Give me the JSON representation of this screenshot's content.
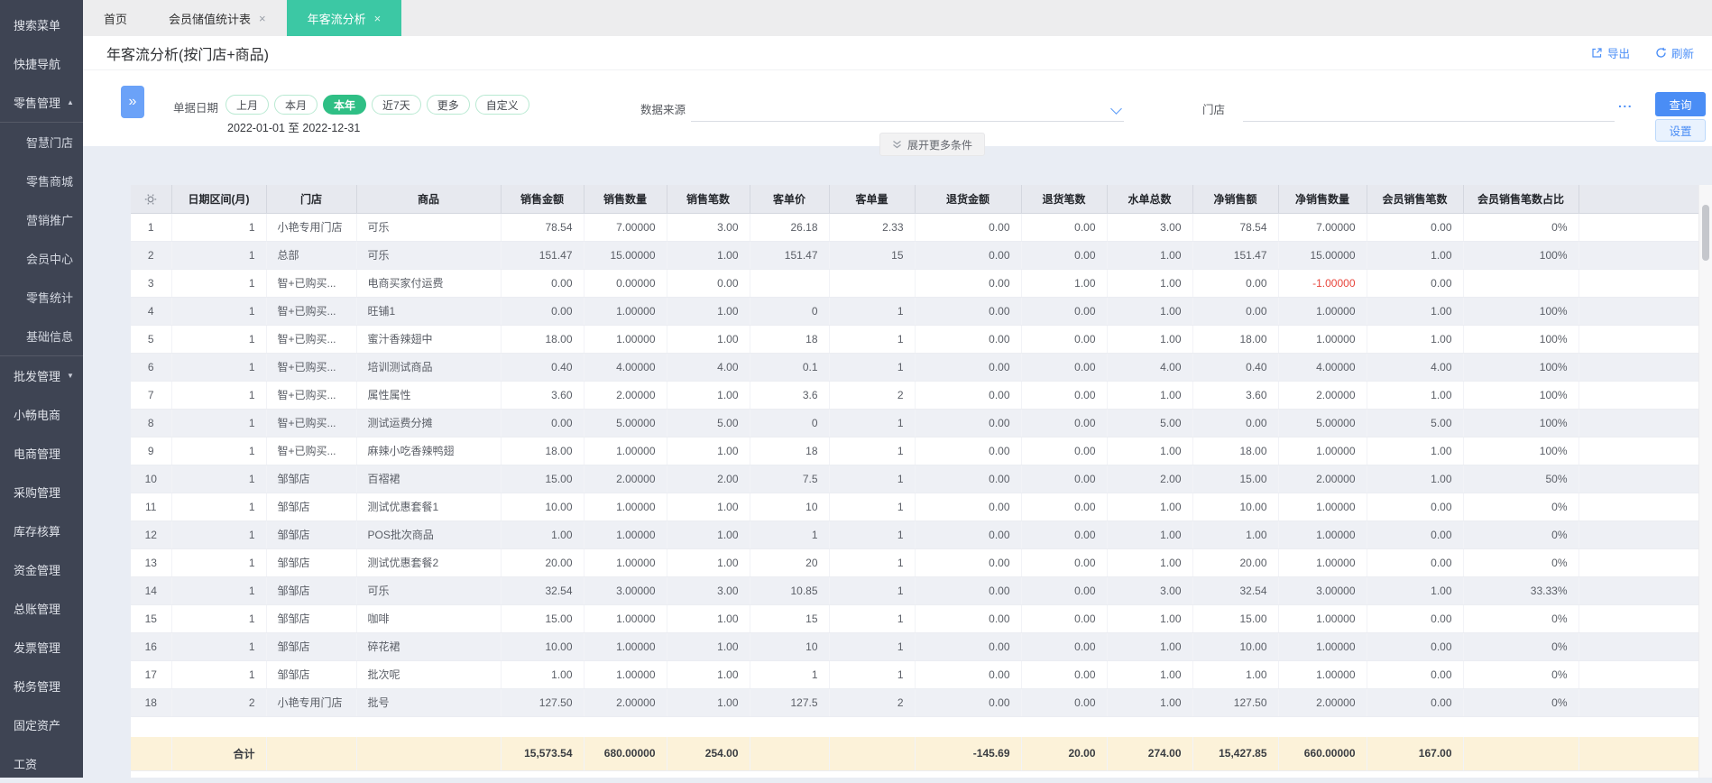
{
  "sidebar": {
    "items": [
      {
        "label": "搜索菜单",
        "type": "item"
      },
      {
        "label": "快捷导航",
        "type": "item"
      },
      {
        "label": "零售管理",
        "type": "group",
        "state": "expanded"
      },
      {
        "label": "智慧门店",
        "type": "sub"
      },
      {
        "label": "零售商城",
        "type": "sub"
      },
      {
        "label": "营销推广",
        "type": "sub"
      },
      {
        "label": "会员中心",
        "type": "sub"
      },
      {
        "label": "零售统计",
        "type": "sub"
      },
      {
        "label": "基础信息",
        "type": "sub"
      },
      {
        "label": "批发管理",
        "type": "group",
        "state": "collapsed"
      },
      {
        "label": "小畅电商",
        "type": "item"
      },
      {
        "label": "电商管理",
        "type": "item"
      },
      {
        "label": "采购管理",
        "type": "item"
      },
      {
        "label": "库存核算",
        "type": "item"
      },
      {
        "label": "资金管理",
        "type": "item"
      },
      {
        "label": "总账管理",
        "type": "item"
      },
      {
        "label": "发票管理",
        "type": "item"
      },
      {
        "label": "税务管理",
        "type": "item"
      },
      {
        "label": "固定资产",
        "type": "item"
      },
      {
        "label": "工资",
        "type": "item"
      }
    ]
  },
  "tabs": [
    {
      "label": "首页",
      "closable": false,
      "active": false
    },
    {
      "label": "会员储值统计表",
      "closable": true,
      "active": false
    },
    {
      "label": "年客流分析",
      "closable": true,
      "active": true
    }
  ],
  "header": {
    "title": "年客流分析(按门店+商品)",
    "export_label": "导出",
    "refresh_label": "刷新"
  },
  "filters": {
    "date_label": "单据日期",
    "date_options": [
      "上月",
      "本月",
      "本年",
      "近7天",
      "更多",
      "自定义"
    ],
    "active_date_option": "本年",
    "date_range": "2022-01-01 至 2022-12-31",
    "source_label": "数据来源",
    "source_value": "",
    "store_label": "门店",
    "store_value": "",
    "more_dots": "...",
    "query_label": "查询",
    "settings_label": "设置",
    "expand_label": "展开更多条件"
  },
  "table": {
    "columns": [
      "日期区间(月)",
      "门店",
      "商品",
      "销售金额",
      "销售数量",
      "销售笔数",
      "客单价",
      "客单量",
      "退货金额",
      "退货笔数",
      "水单总数",
      "净销售额",
      "净销售数量",
      "会员销售笔数",
      "会员销售笔数占比"
    ],
    "rows": [
      [
        "1",
        "1",
        "小艳专用门店",
        "可乐",
        "78.54",
        "7.00000",
        "3.00",
        "26.18",
        "2.33",
        "0.00",
        "0.00",
        "3.00",
        "78.54",
        "7.00000",
        "0.00",
        "0%"
      ],
      [
        "2",
        "1",
        "总部",
        "可乐",
        "151.47",
        "15.00000",
        "1.00",
        "151.47",
        "15",
        "0.00",
        "0.00",
        "1.00",
        "151.47",
        "15.00000",
        "1.00",
        "100%"
      ],
      [
        "3",
        "1",
        "智+已购买...",
        "电商买家付运费",
        "0.00",
        "0.00000",
        "0.00",
        "",
        "",
        "0.00",
        "1.00",
        "1.00",
        "0.00",
        "-1.00000",
        "0.00",
        ""
      ],
      [
        "4",
        "1",
        "智+已购买...",
        "旺铺1",
        "0.00",
        "1.00000",
        "1.00",
        "0",
        "1",
        "0.00",
        "0.00",
        "1.00",
        "0.00",
        "1.00000",
        "1.00",
        "100%"
      ],
      [
        "5",
        "1",
        "智+已购买...",
        "蜜汁香辣翅中",
        "18.00",
        "1.00000",
        "1.00",
        "18",
        "1",
        "0.00",
        "0.00",
        "1.00",
        "18.00",
        "1.00000",
        "1.00",
        "100%"
      ],
      [
        "6",
        "1",
        "智+已购买...",
        "培训测试商品",
        "0.40",
        "4.00000",
        "4.00",
        "0.1",
        "1",
        "0.00",
        "0.00",
        "4.00",
        "0.40",
        "4.00000",
        "4.00",
        "100%"
      ],
      [
        "7",
        "1",
        "智+已购买...",
        "属性属性",
        "3.60",
        "2.00000",
        "1.00",
        "3.6",
        "2",
        "0.00",
        "0.00",
        "1.00",
        "3.60",
        "2.00000",
        "1.00",
        "100%"
      ],
      [
        "8",
        "1",
        "智+已购买...",
        "测试运费分摊",
        "0.00",
        "5.00000",
        "5.00",
        "0",
        "1",
        "0.00",
        "0.00",
        "5.00",
        "0.00",
        "5.00000",
        "5.00",
        "100%"
      ],
      [
        "9",
        "1",
        "智+已购买...",
        "麻辣小吃香辣鸭翅",
        "18.00",
        "1.00000",
        "1.00",
        "18",
        "1",
        "0.00",
        "0.00",
        "1.00",
        "18.00",
        "1.00000",
        "1.00",
        "100%"
      ],
      [
        "10",
        "1",
        "邹邹店",
        "百褶裙",
        "15.00",
        "2.00000",
        "2.00",
        "7.5",
        "1",
        "0.00",
        "0.00",
        "2.00",
        "15.00",
        "2.00000",
        "1.00",
        "50%"
      ],
      [
        "11",
        "1",
        "邹邹店",
        "测试优惠套餐1",
        "10.00",
        "1.00000",
        "1.00",
        "10",
        "1",
        "0.00",
        "0.00",
        "1.00",
        "10.00",
        "1.00000",
        "0.00",
        "0%"
      ],
      [
        "12",
        "1",
        "邹邹店",
        "POS批次商品",
        "1.00",
        "1.00000",
        "1.00",
        "1",
        "1",
        "0.00",
        "0.00",
        "1.00",
        "1.00",
        "1.00000",
        "0.00",
        "0%"
      ],
      [
        "13",
        "1",
        "邹邹店",
        "测试优惠套餐2",
        "20.00",
        "1.00000",
        "1.00",
        "20",
        "1",
        "0.00",
        "0.00",
        "1.00",
        "20.00",
        "1.00000",
        "0.00",
        "0%"
      ],
      [
        "14",
        "1",
        "邹邹店",
        "可乐",
        "32.54",
        "3.00000",
        "3.00",
        "10.85",
        "1",
        "0.00",
        "0.00",
        "3.00",
        "32.54",
        "3.00000",
        "1.00",
        "33.33%"
      ],
      [
        "15",
        "1",
        "邹邹店",
        "咖啡",
        "15.00",
        "1.00000",
        "1.00",
        "15",
        "1",
        "0.00",
        "0.00",
        "1.00",
        "15.00",
        "1.00000",
        "0.00",
        "0%"
      ],
      [
        "16",
        "1",
        "邹邹店",
        "碎花裙",
        "10.00",
        "1.00000",
        "1.00",
        "10",
        "1",
        "0.00",
        "0.00",
        "1.00",
        "10.00",
        "1.00000",
        "0.00",
        "0%"
      ],
      [
        "17",
        "1",
        "邹邹店",
        "批次呢",
        "1.00",
        "1.00000",
        "1.00",
        "1",
        "1",
        "0.00",
        "0.00",
        "1.00",
        "1.00",
        "1.00000",
        "0.00",
        "0%"
      ],
      [
        "18",
        "2",
        "小艳专用门店",
        "批号",
        "127.50",
        "2.00000",
        "1.00",
        "127.5",
        "2",
        "0.00",
        "0.00",
        "1.00",
        "127.50",
        "2.00000",
        "0.00",
        "0%"
      ]
    ],
    "total_row": [
      "",
      "合计",
      "",
      "",
      "15,573.54",
      "680.00000",
      "254.00",
      "",
      "",
      "-145.69",
      "20.00",
      "274.00",
      "15,427.85",
      "660.00000",
      "167.00",
      ""
    ]
  },
  "colors": {
    "sidebar_bg": "#3e4453",
    "accent_blue": "#4a8df5",
    "tab_active_green": "#3cc8a4",
    "pill_active_green": "#2fbf85",
    "negative_red": "#e8453c",
    "total_row_bg": "#fcf2d9",
    "header_row_bg": "#e7e9ef"
  }
}
